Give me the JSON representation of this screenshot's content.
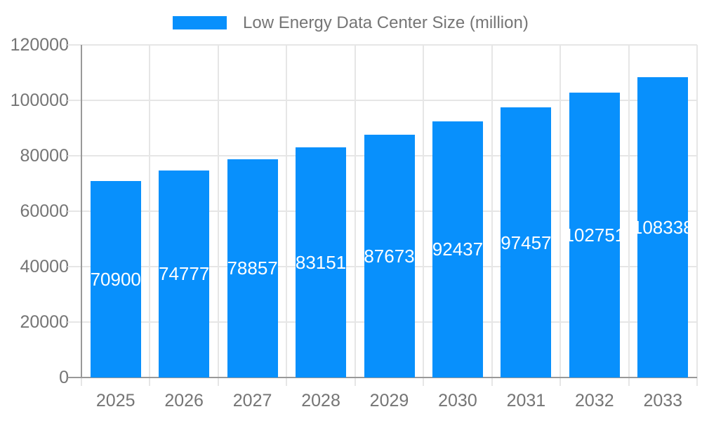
{
  "chart_data": {
    "type": "bar",
    "legend": {
      "position": "top",
      "entries": [
        {
          "label": "Low Energy Data Center Size (million)",
          "color": "#0890fc"
        }
      ]
    },
    "categories": [
      "2025",
      "2026",
      "2027",
      "2028",
      "2029",
      "2030",
      "2031",
      "2032",
      "2033"
    ],
    "series": [
      {
        "name": "Low Energy Data Center Size (million)",
        "values": [
          70900,
          74777,
          78857,
          83151,
          87673,
          92437,
          97457,
          102751,
          108338
        ],
        "color": "#0890fc"
      }
    ],
    "bar_value_labels_visible": true,
    "xlabel": "",
    "ylabel": "",
    "ylim": [
      0,
      120000
    ],
    "ytick_interval": 20000,
    "ytick_labels": [
      "0",
      "20000",
      "40000",
      "60000",
      "80000",
      "100000",
      "120000"
    ],
    "grid": true,
    "colors": {
      "bar": "#0890fc",
      "bar_label_text": "#ffffff",
      "tick_text": "#757575",
      "legend_text": "#757575",
      "gridline": "#e6e6e6",
      "axis_line": "#999999",
      "background": "#ffffff"
    }
  }
}
